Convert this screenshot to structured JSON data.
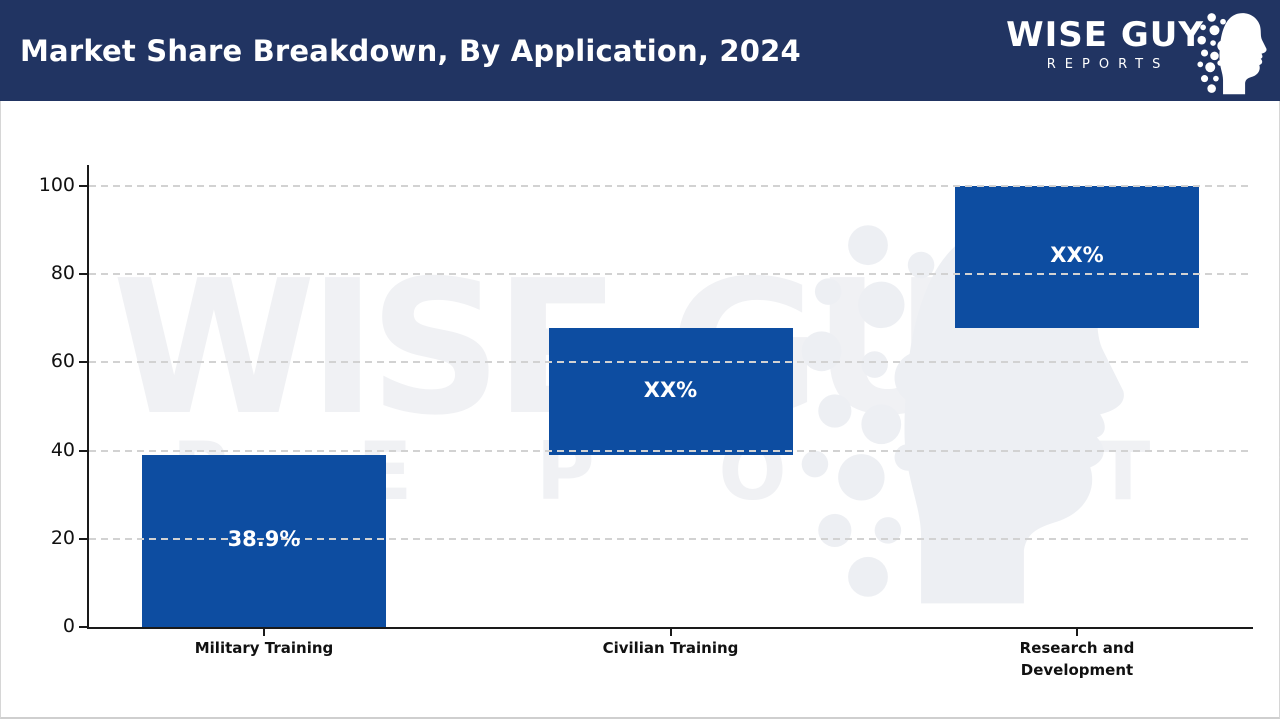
{
  "header": {
    "title": "Market Share Breakdown, By Application, 2024",
    "bg_color": "#213462",
    "logo": {
      "line1": "WISE GUY",
      "line2": "REPORTS"
    }
  },
  "watermark": {
    "line1": "WISE GUY",
    "line2": "R E P O R T S"
  },
  "chart_data": {
    "type": "bar",
    "subtype": "floating-waterfall",
    "title": "Market Share Breakdown, By Application, 2024",
    "categories": [
      "Military Training",
      "Civilian Training",
      "Research and Development"
    ],
    "segments": [
      {
        "category": "Military Training",
        "start": 0,
        "end": 38.9,
        "label": "38.9%"
      },
      {
        "category": "Civilian Training",
        "start": 38.9,
        "end": 67.8,
        "label": "XX%"
      },
      {
        "category": "Research and Development",
        "start": 67.8,
        "end": 100,
        "label": "XX%"
      }
    ],
    "xlabel": "",
    "ylabel": "",
    "ylim": [
      0,
      100
    ],
    "yticks": [
      0,
      20,
      40,
      60,
      80,
      100
    ],
    "grid": "dashed-horizontal",
    "legend": "none",
    "bar_color": "#0d4da1",
    "bar_label_color": "#ffffff",
    "axis_color": "#1a1a1a",
    "grid_color": "#d2d2d2"
  }
}
